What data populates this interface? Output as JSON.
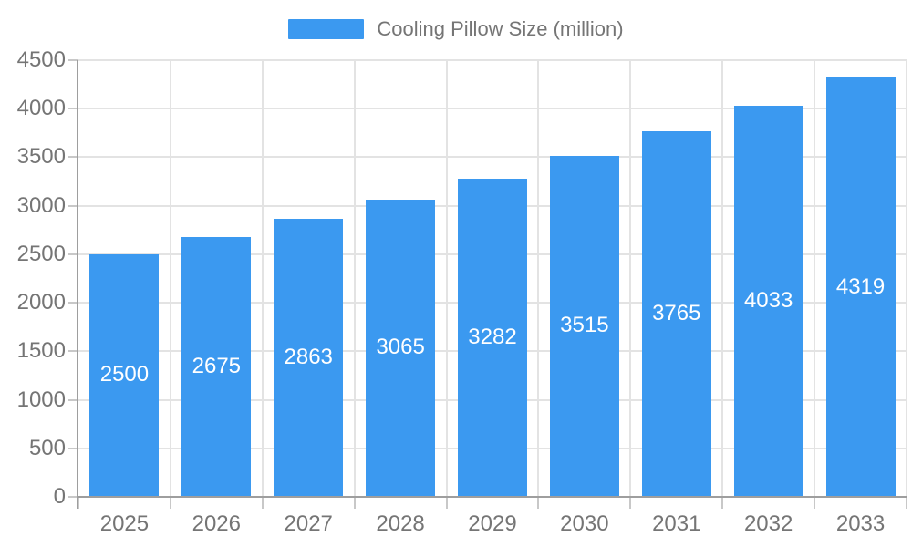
{
  "chart_data": {
    "type": "bar",
    "title": "Cooling Pillow Size (million)",
    "categories": [
      "2025",
      "2026",
      "2027",
      "2028",
      "2029",
      "2030",
      "2031",
      "2032",
      "2033"
    ],
    "values": [
      2500,
      2675,
      2863,
      3065,
      3282,
      3515,
      3765,
      4033,
      4319
    ],
    "series": [
      {
        "name": "Cooling Pillow Size (million)",
        "values": [
          2500,
          2675,
          2863,
          3065,
          3282,
          3515,
          3765,
          4033,
          4319
        ]
      }
    ],
    "value_labels_shown": true,
    "xlabel": "",
    "ylabel": "",
    "ylim": [
      0,
      4500
    ],
    "yticks": [
      0,
      500,
      1000,
      1500,
      2000,
      2500,
      3000,
      3500,
      4000,
      4500
    ],
    "grid": true,
    "legend_position": "top-center",
    "colors": {
      "bar": "#3B99F0",
      "value_label": "#FFFFFF",
      "axis_text": "#757575",
      "gridline": "#E3E3E3",
      "axis_line": "#9E9E9E",
      "tick": "#C8C8C8",
      "background": "#FFFFFF"
    }
  }
}
